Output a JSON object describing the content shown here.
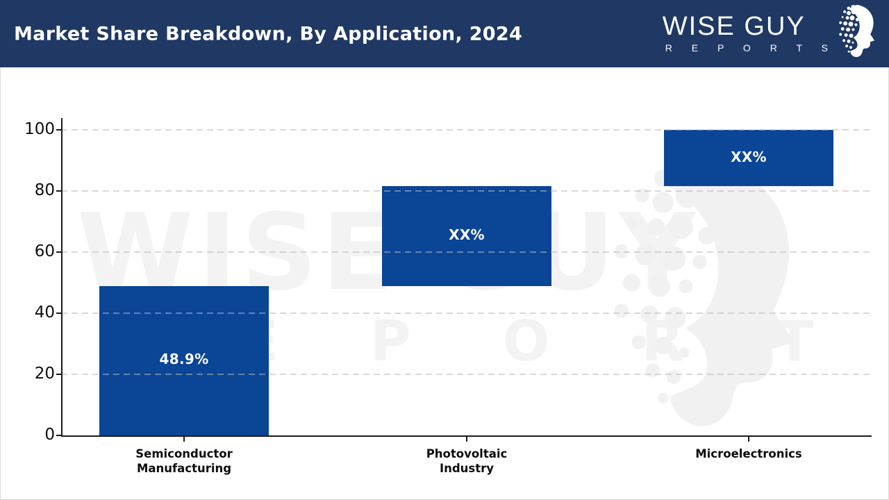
{
  "header": {
    "title": "Market Share Breakdown, By Application, 2024",
    "bg_color": "#1f3864",
    "logo": {
      "line1": "WISE GUY",
      "line2": "R E P O R T S"
    }
  },
  "watermark": {
    "line1": "WISE GUY",
    "line2": "R E P O R T S"
  },
  "chart_data": {
    "type": "bar",
    "subtype": "waterfall",
    "title": "Market Share Breakdown, By Application, 2024",
    "categories": [
      "Semiconductor Manufacturing",
      "Photovoltaic Industry",
      "Microelectronics"
    ],
    "categories_lines": [
      [
        "Semiconductor",
        "Manufacturing"
      ],
      [
        "Photovoltaic",
        "Industry"
      ],
      [
        "Microelectronics"
      ]
    ],
    "segments": [
      {
        "category": "Semiconductor Manufacturing",
        "start": 0,
        "end": 48.9,
        "label": "48.9%"
      },
      {
        "category": "Photovoltaic Industry",
        "start": 48.9,
        "end": 81.5,
        "label": "XX%"
      },
      {
        "category": "Microelectronics",
        "start": 81.5,
        "end": 100,
        "label": "XX%"
      }
    ],
    "yticks": [
      0,
      20,
      40,
      60,
      80,
      100
    ],
    "ylim": [
      0,
      105
    ],
    "grid": true,
    "legend": false,
    "bar_color": "#0a4596",
    "axis_color": "#1a1a1a"
  }
}
